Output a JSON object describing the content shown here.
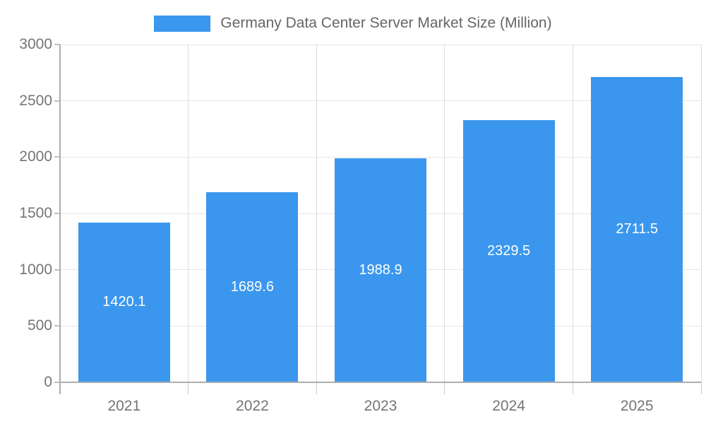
{
  "chart_data": {
    "type": "bar",
    "title": "Germany Data Center Server Market Size (Million)",
    "series_name": "Germany Data Center Server Market Size (Million)",
    "categories": [
      "2021",
      "2022",
      "2023",
      "2024",
      "2025"
    ],
    "values": [
      1420.1,
      1689.6,
      1988.9,
      2329.5,
      2711.5
    ],
    "value_labels": [
      "1420.1",
      "1689.6",
      "1988.9",
      "2329.5",
      "2711.5"
    ],
    "xlabel": "",
    "ylabel": "",
    "ylim": [
      0,
      3000
    ],
    "yticks": [
      0,
      500,
      1000,
      1500,
      2000,
      2500,
      3000
    ],
    "grid": true,
    "legend_position": "top-center",
    "colors": {
      "bar": "#3b97ee",
      "value_label": "#ffffff",
      "axis_text": "#757575",
      "legend_text": "#666666",
      "gridline_h": "#e5e5e5",
      "gridline_v": "#dcdcdc",
      "axis_line": "#adadad",
      "background": "#ffffff"
    }
  },
  "legend": {
    "label": "Germany Data Center Server Market Size (Million)",
    "swatch_color": "#3b97ee"
  }
}
